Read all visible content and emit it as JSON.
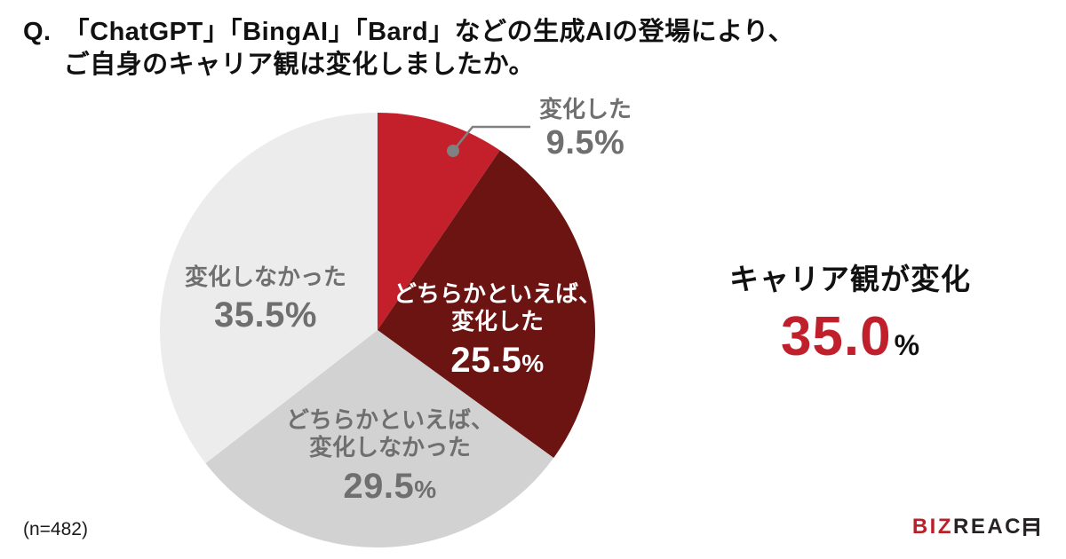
{
  "title": {
    "prefix": "Q.",
    "line1": "「ChatGPT」「BingAI」「Bard」などの生成AIの登場により、",
    "line2": "ご自身のキャリア観は変化しましたか。"
  },
  "chart_data": {
    "type": "pie",
    "title": "「ChatGPT」「BingAI」「Bard」などの生成AIの登場により、ご自身のキャリア観は変化しましたか。",
    "categories": [
      "変化した",
      "どちらかといえば、変化した",
      "どちらかといえば、変化しなかった",
      "変化しなかった"
    ],
    "values": [
      9.5,
      25.5,
      29.5,
      35.5
    ],
    "unit": "%",
    "colors": [
      "#c3202b",
      "#6b1412",
      "#d2d2d2",
      "#edecec"
    ],
    "start_angle_deg": -90,
    "direction": "clockwise",
    "sample_size": 482,
    "annotation": {
      "caption": "キャリア観が変化",
      "value": 35.0,
      "unit": "%"
    },
    "legend_position": "on-slices"
  },
  "labels": {
    "changed": {
      "line1": "変化した",
      "value": "9.5",
      "unit": "%"
    },
    "somewhat_changed": {
      "line1": "どちらかといえば、",
      "line2": "変化した",
      "value": "25.5",
      "unit": "%"
    },
    "somewhat_not_changed": {
      "line1": "どちらかといえば、",
      "line2": "変化しなかった",
      "value": "29.5",
      "unit": "%"
    },
    "not_changed": {
      "line1": "変化しなかった",
      "value": "35.5",
      "unit": "%"
    }
  },
  "highlight": {
    "caption": "キャリア観が変化",
    "value": "35.0",
    "unit": "%"
  },
  "footer": {
    "sample_size": "(n=482)",
    "logo": {
      "part1": "BIZ",
      "part2": "REAC"
    }
  },
  "style_colors": {
    "accent_red": "#c3202b",
    "dark_maroon": "#6b1412",
    "mid_gray": "#d2d2d2",
    "light_gray": "#edecec",
    "label_gray": "#6f6f6f",
    "leader_line": "#808080"
  }
}
